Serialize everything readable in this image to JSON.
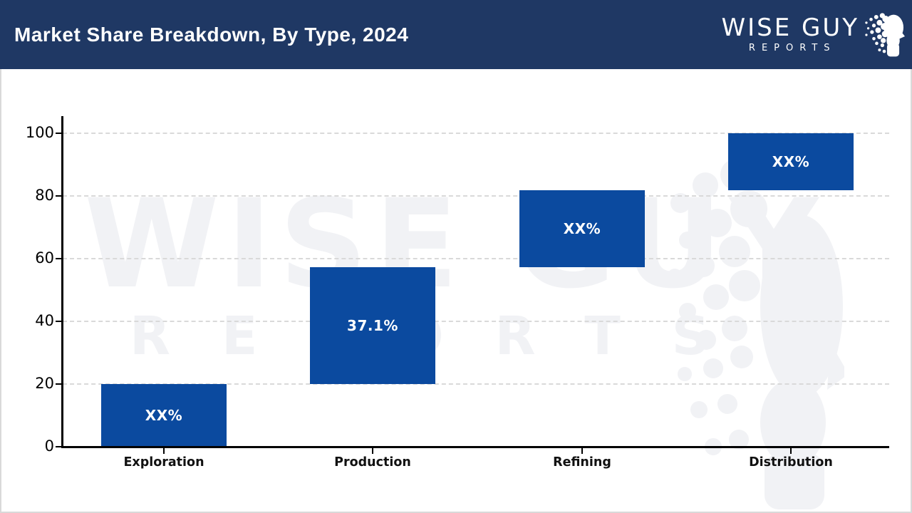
{
  "header": {
    "title": "Market Share Breakdown, By Type, 2024",
    "bg_color": "#1f3864",
    "logo": {
      "name_line": "WISE GUY",
      "sub_line": "REPORTS"
    }
  },
  "watermark": {
    "name_line": "WISE GUY",
    "sub_line": "REPORTS"
  },
  "chart_data": {
    "type": "bar",
    "subtype": "floating_waterfall_segments",
    "title": "Market Share Breakdown, By Type, 2024",
    "categories": [
      "Exploration",
      "Production",
      "Refining",
      "Distribution"
    ],
    "segments": [
      {
        "category": "Exploration",
        "from": 0,
        "to": 20,
        "label": "XX%"
      },
      {
        "category": "Production",
        "from": 20,
        "to": 57.1,
        "label": "37.1%"
      },
      {
        "category": "Refining",
        "from": 57.1,
        "to": 81.7,
        "label": "XX%"
      },
      {
        "category": "Distribution",
        "from": 81.7,
        "to": 100,
        "label": "XX%"
      }
    ],
    "xlabel": "",
    "ylabel": "",
    "ylim": [
      0,
      100
    ],
    "yticks": [
      0,
      20,
      40,
      60,
      80,
      100
    ],
    "grid": {
      "horizontal": true,
      "style": "dashed",
      "color": "#d9d9d9"
    },
    "legend": "none",
    "colors": {
      "bar": "#0b4a9f",
      "bar_label": "#ffffff",
      "axis": "#000000",
      "tick_label": "#000000",
      "header_bg": "#1f3864",
      "watermark": "#f1f2f5"
    }
  }
}
